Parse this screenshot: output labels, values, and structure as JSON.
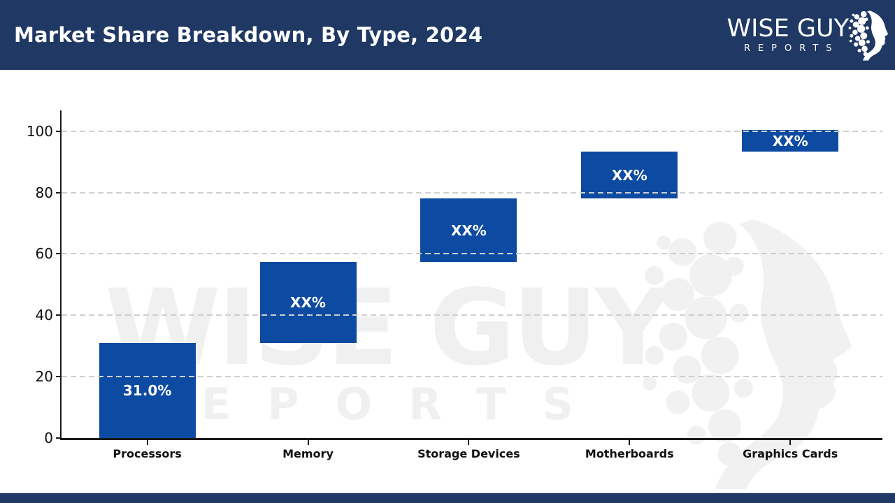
{
  "header": {
    "title": "Market Share Breakdown, By Type, 2024",
    "background_color": "#1f3864",
    "brand": {
      "wordmark": "WISE GUY",
      "subtitle": "REPORTS"
    }
  },
  "watermark": {
    "wordmark": "WISE GUY",
    "subtitle": "REPORTS"
  },
  "chart_data": {
    "type": "bar",
    "subtype": "waterfall",
    "title": "Market Share Breakdown, By Type, 2024",
    "categories": [
      "Processors",
      "Memory",
      "Storage Devices",
      "Motherboards",
      "Graphics Cards"
    ],
    "bars": [
      {
        "category": "Processors",
        "start": 0.0,
        "end": 31.0,
        "label": "31.0%"
      },
      {
        "category": "Memory",
        "start": 31.0,
        "end": 57.4,
        "label": "XX%"
      },
      {
        "category": "Storage Devices",
        "start": 57.4,
        "end": 78.0,
        "label": "XX%"
      },
      {
        "category": "Motherboards",
        "start": 78.0,
        "end": 93.3,
        "label": "XX%"
      },
      {
        "category": "Graphics Cards",
        "start": 93.3,
        "end": 100.3,
        "label": "XX%"
      }
    ],
    "segment_size_est": [
      31.0,
      26.4,
      20.6,
      15.3,
      7.0
    ],
    "yticks": [
      0,
      20,
      40,
      60,
      80,
      100
    ],
    "ylim": [
      0,
      106
    ],
    "xlabel": "",
    "ylabel": "",
    "grid": "horizontal-dashed",
    "legend": false,
    "bar_color": "#0d4aa1",
    "bar_label_color": "#ffffff",
    "grid_color": "#cfcfcf",
    "axis_color": "#1a1a1a"
  },
  "footer": {
    "background_color": "#1f3864"
  }
}
